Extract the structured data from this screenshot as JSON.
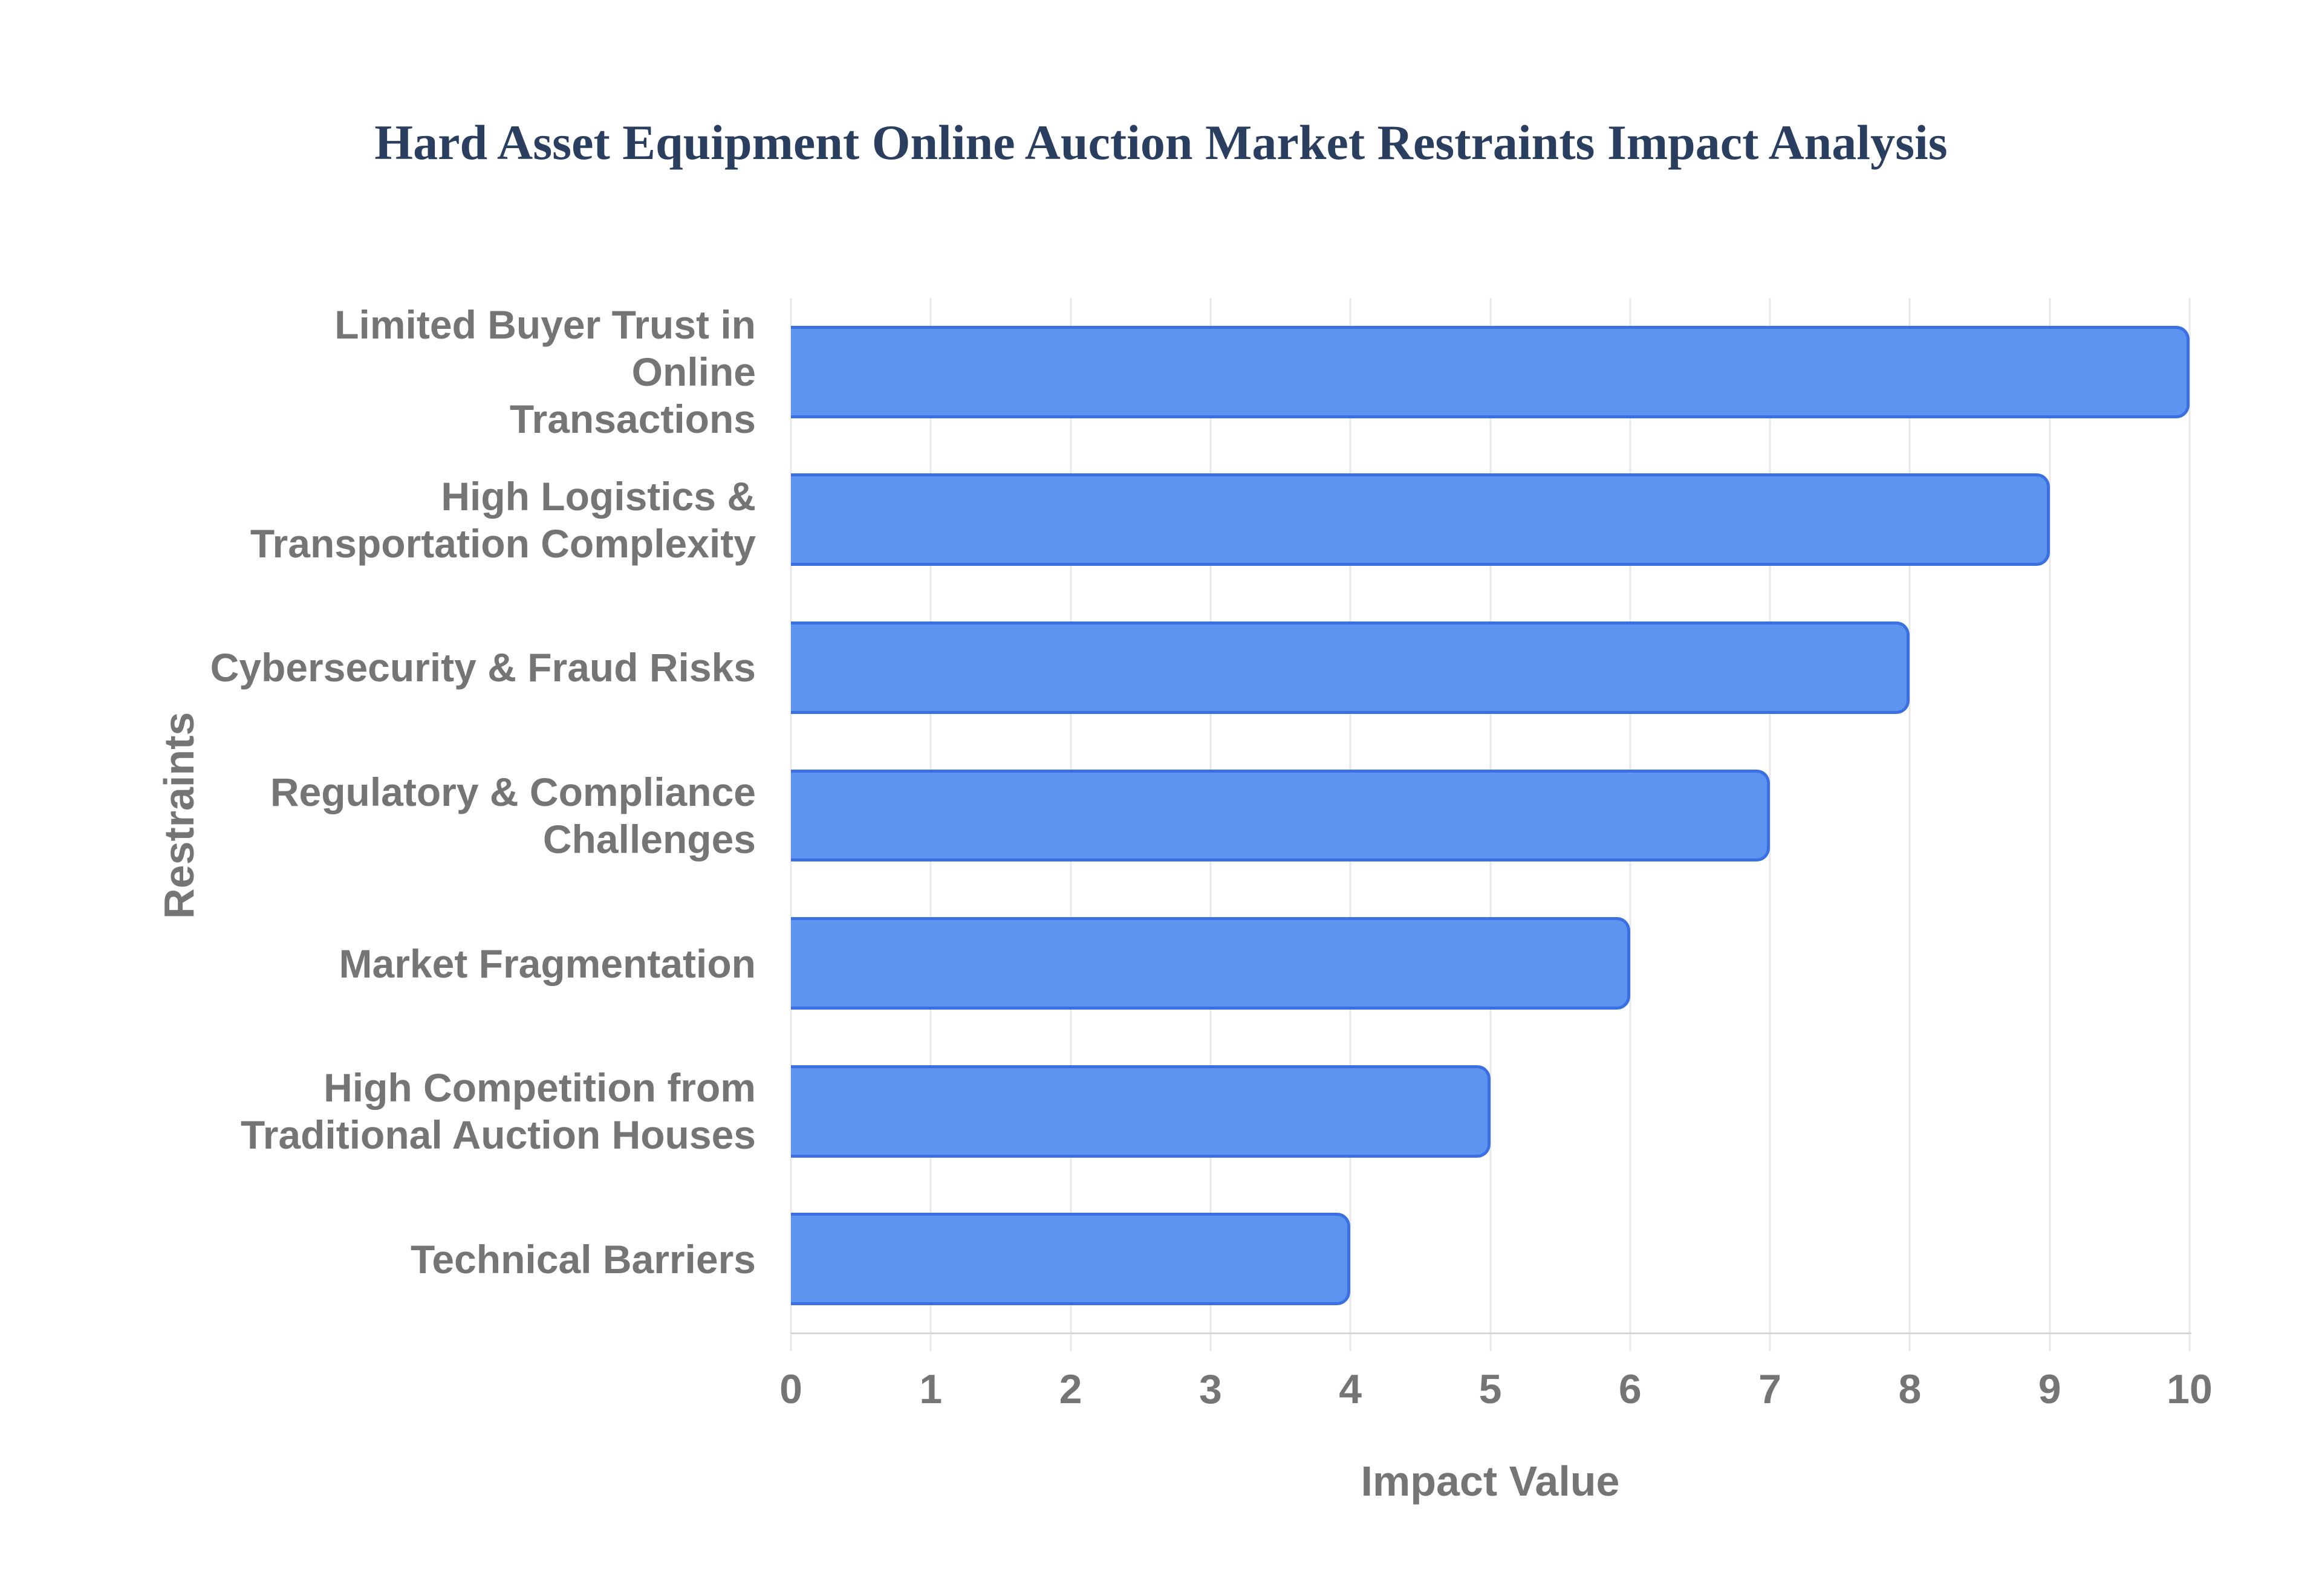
{
  "page": {
    "background": "#ffffff"
  },
  "chart_data": {
    "type": "bar",
    "orientation": "horizontal",
    "title": "Hard Asset Equipment Online Auction Market Restraints Impact Analysis",
    "categories": [
      "Limited Buyer Trust in Online\nTransactions",
      "High Logistics &\nTransportation Complexity",
      "Cybersecurity & Fraud Risks",
      "Regulatory & Compliance\nChallenges",
      "Market Fragmentation",
      "High Competition from\nTraditional Auction Houses",
      "Technical Barriers"
    ],
    "values": [
      10,
      9,
      8,
      7,
      6,
      5,
      4
    ],
    "xlabel": "Impact Value",
    "ylabel": "Restraints",
    "xlim": [
      0,
      10
    ],
    "xticks": [
      "0",
      "1",
      "2",
      "3",
      "4",
      "5",
      "6",
      "7",
      "8",
      "9",
      "10"
    ],
    "grid": true,
    "legend": false,
    "colors": {
      "bar_fill": "#5d94ef",
      "bar_border": "#3b70e3",
      "grid_line": "#e8e8e8",
      "axis_line": "#d6d6d6",
      "label_text": "#757575",
      "title_text": "#2a3f5f",
      "background": "#ffffff"
    }
  }
}
